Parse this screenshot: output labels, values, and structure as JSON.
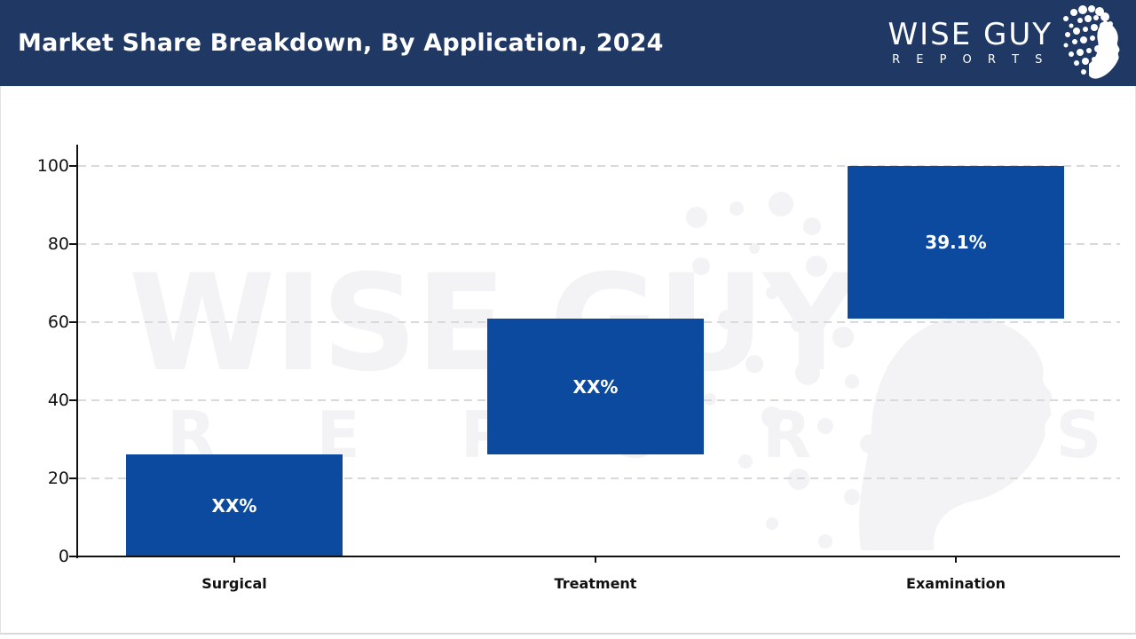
{
  "header": {
    "title": "Market Share Breakdown, By Application, 2024",
    "bg_color": "#203864",
    "logo": {
      "line1": "WISE GUY",
      "line2": "R E P O R T S"
    }
  },
  "watermark": {
    "line1": "WISE GUY",
    "line2": "R E P O R T S"
  },
  "chart_data": {
    "type": "bar",
    "subtype": "waterfall",
    "title": "Market Share Breakdown, By Application, 2024",
    "categories": [
      "Surgical",
      "Treatment",
      "Examination"
    ],
    "segments": [
      {
        "category": "Surgical",
        "start": 0,
        "end": 26.1,
        "label": "XX%"
      },
      {
        "category": "Treatment",
        "start": 26.1,
        "end": 60.9,
        "label": "XX%"
      },
      {
        "category": "Examination",
        "start": 60.9,
        "end": 100,
        "label": "39.1%"
      }
    ],
    "yticks": [
      0,
      20,
      40,
      60,
      80,
      100
    ],
    "ylim": [
      0,
      105.5
    ],
    "xlabel": "",
    "ylabel": "",
    "grid": true,
    "grid_axis": "y",
    "grid_style": "dashed",
    "legend": "none",
    "bar_color": "#0b4a9f",
    "bar_label_color": "#ffffff",
    "axis_color": "#111111",
    "grid_color": "#d9d9d9",
    "tick_label_color": "#111111"
  }
}
